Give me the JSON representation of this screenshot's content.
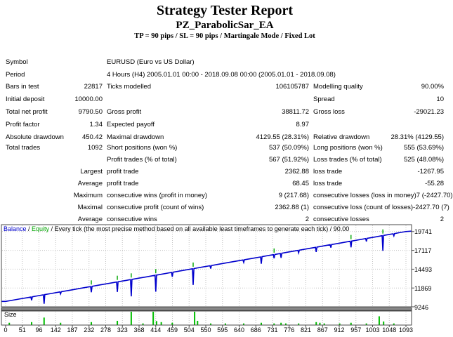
{
  "header": {
    "title": "Strategy Tester Report",
    "ea_name": "PZ_ParabolicSar_EA",
    "settings": "TP = 90 pips / SL = 90 pips / Martingale Mode / Fixed Lot"
  },
  "info": [
    {
      "label": "Symbol",
      "value": "EURUSD (Euro vs US Dollar)"
    },
    {
      "label": "Period",
      "value": "4 Hours (H4) 2005.01.01 00:00 - 2018.09.08 00:00 (2005.01.01 - 2018.09.08)"
    }
  ],
  "stats": {
    "block1": [
      [
        "Bars in test",
        "22817",
        "Ticks modelled",
        "106105787",
        "Modelling quality",
        "90.00%"
      ],
      [
        "Initial deposit",
        "10000.00",
        "",
        "",
        "Spread",
        "10"
      ],
      [
        "Total net profit",
        "9790.50",
        "Gross profit",
        "38811.72",
        "Gross loss",
        "-29021.23"
      ],
      [
        "Profit factor",
        "1.34",
        "Expected payoff",
        "8.97",
        "",
        ""
      ],
      [
        "Absolute drawdown",
        "450.42",
        "Maximal drawdown",
        "4129.55 (28.31%)",
        "Relative drawdown",
        "28.31% (4129.55)"
      ]
    ],
    "block2": [
      [
        "Total trades",
        "1092",
        "Short positions (won %)",
        "537 (50.09%)",
        "Long positions (won %)",
        "555 (53.69%)"
      ],
      [
        "",
        "",
        "Profit trades (% of total)",
        "567 (51.92%)",
        "Loss trades (% of total)",
        "525 (48.08%)"
      ],
      [
        "",
        "Largest",
        "profit trade",
        "2362.88",
        "loss trade",
        "-1267.95"
      ],
      [
        "",
        "Average",
        "profit trade",
        "68.45",
        "loss trade",
        "-55.28"
      ],
      [
        "",
        "Maximum",
        "consecutive wins (profit in money)",
        "9 (217.68)",
        "consecutive losses (loss in money)",
        "7 (-2427.70)"
      ],
      [
        "",
        "Maximal",
        "consecutive profit (count of wins)",
        "2362.88 (1)",
        "consecutive loss (count of losses)",
        "-2427.70 (7)"
      ],
      [
        "",
        "Average",
        "consecutive wins",
        "2",
        "consecutive losses",
        "2"
      ]
    ]
  },
  "chart_data": [
    {
      "type": "line",
      "title": "Balance / Equity curve",
      "legend": {
        "balance": "Balance",
        "equity": "Equity",
        "sep": " / ",
        "method": "Every tick (the most precise method based on all available least timeframes to generate each tick)",
        "quality": "90.00"
      },
      "colors": {
        "balance": "#0000CD",
        "equity": "#00A500",
        "grid": "#C4C4C4",
        "border": "#4A4A4A"
      },
      "xlim": [
        0,
        1093
      ],
      "ylim": [
        9246,
        20200
      ],
      "y_ticks": [
        19741,
        17117,
        14493,
        11869,
        9246
      ],
      "x_ticks": [
        0,
        51,
        96,
        142,
        187,
        232,
        278,
        323,
        368,
        414,
        459,
        504,
        550,
        595,
        640,
        686,
        731,
        776,
        821,
        867,
        912,
        957,
        1003,
        1048,
        1093
      ],
      "balance": [
        [
          0,
          10000
        ],
        [
          20,
          10180
        ],
        [
          40,
          10360
        ],
        [
          60,
          10530
        ],
        [
          69,
          10610
        ],
        [
          71,
          10160
        ],
        [
          73,
          10650
        ],
        [
          90,
          10800
        ],
        [
          103,
          10920
        ],
        [
          105,
          9670
        ],
        [
          107,
          10950
        ],
        [
          125,
          11110
        ],
        [
          148,
          11320
        ],
        [
          150,
          11040
        ],
        [
          152,
          11350
        ],
        [
          175,
          11560
        ],
        [
          200,
          11780
        ],
        [
          232,
          12070
        ],
        [
          234,
          11270
        ],
        [
          236,
          12100
        ],
        [
          260,
          12320
        ],
        [
          280,
          12500
        ],
        [
          303,
          12700
        ],
        [
          305,
          11320
        ],
        [
          307,
          12740
        ],
        [
          330,
          12940
        ],
        [
          341,
          13040
        ],
        [
          343,
          10700
        ],
        [
          345,
          13070
        ],
        [
          365,
          13250
        ],
        [
          385,
          13430
        ],
        [
          408,
          13640
        ],
        [
          410,
          11350
        ],
        [
          412,
          13670
        ],
        [
          430,
          13830
        ],
        [
          453,
          14040
        ],
        [
          455,
          13440
        ],
        [
          457,
          14070
        ],
        [
          480,
          14280
        ],
        [
          510,
          14550
        ],
        [
          512,
          12300
        ],
        [
          514,
          14580
        ],
        [
          535,
          14770
        ],
        [
          558,
          14970
        ],
        [
          560,
          14570
        ],
        [
          562,
          15000
        ],
        [
          590,
          15260
        ],
        [
          620,
          15530
        ],
        [
          648,
          15780
        ],
        [
          650,
          15430
        ],
        [
          652,
          15810
        ],
        [
          680,
          16060
        ],
        [
          696,
          16200
        ],
        [
          698,
          15250
        ],
        [
          700,
          16240
        ],
        [
          720,
          16420
        ],
        [
          731,
          16510
        ],
        [
          733,
          16010
        ],
        [
          735,
          16550
        ],
        [
          750,
          16680
        ],
        [
          752,
          16080
        ],
        [
          754,
          16720
        ],
        [
          775,
          16910
        ],
        [
          798,
          17110
        ],
        [
          800,
          16760
        ],
        [
          802,
          17150
        ],
        [
          825,
          17350
        ],
        [
          846,
          17540
        ],
        [
          848,
          16890
        ],
        [
          850,
          17580
        ],
        [
          870,
          17750
        ],
        [
          886,
          17900
        ],
        [
          888,
          17500
        ],
        [
          890,
          17930
        ],
        [
          915,
          18150
        ],
        [
          941,
          18390
        ],
        [
          943,
          17540
        ],
        [
          945,
          18420
        ],
        [
          965,
          18600
        ],
        [
          983,
          18760
        ],
        [
          985,
          18360
        ],
        [
          987,
          18800
        ],
        [
          1010,
          19000
        ],
        [
          1028,
          19160
        ],
        [
          1030,
          17060
        ],
        [
          1032,
          19200
        ],
        [
          1050,
          19360
        ],
        [
          1058,
          19430
        ],
        [
          1060,
          19130
        ],
        [
          1062,
          19460
        ],
        [
          1075,
          19580
        ],
        [
          1085,
          19670
        ],
        [
          1093,
          19741
        ]
      ],
      "equity_marks": [
        [
          234,
          12150
        ],
        [
          305,
          12800
        ],
        [
          343,
          13130
        ],
        [
          410,
          13730
        ],
        [
          512,
          14640
        ],
        [
          733,
          16600
        ],
        [
          943,
          18480
        ],
        [
          1030,
          19260
        ]
      ]
    },
    {
      "type": "bar",
      "title": "Size",
      "color": "#00BE00",
      "bars": [
        [
          10,
          0.15
        ],
        [
          71,
          0.2
        ],
        [
          105,
          0.55
        ],
        [
          150,
          0.15
        ],
        [
          234,
          0.2
        ],
        [
          305,
          0.3
        ],
        [
          343,
          1.0
        ],
        [
          375,
          0.1
        ],
        [
          403,
          1.0
        ],
        [
          412,
          0.28
        ],
        [
          425,
          0.2
        ],
        [
          455,
          0.15
        ],
        [
          516,
          1.0
        ],
        [
          524,
          0.3
        ],
        [
          560,
          0.1
        ],
        [
          600,
          0.1
        ],
        [
          650,
          0.1
        ],
        [
          698,
          0.15
        ],
        [
          733,
          0.1
        ],
        [
          752,
          0.15
        ],
        [
          765,
          0.1
        ],
        [
          800,
          0.1
        ],
        [
          848,
          0.2
        ],
        [
          858,
          0.15
        ],
        [
          870,
          0.1
        ],
        [
          912,
          0.1
        ],
        [
          943,
          0.15
        ],
        [
          985,
          0.1
        ],
        [
          1020,
          0.65
        ],
        [
          1032,
          0.25
        ],
        [
          1060,
          0.1
        ]
      ]
    }
  ]
}
